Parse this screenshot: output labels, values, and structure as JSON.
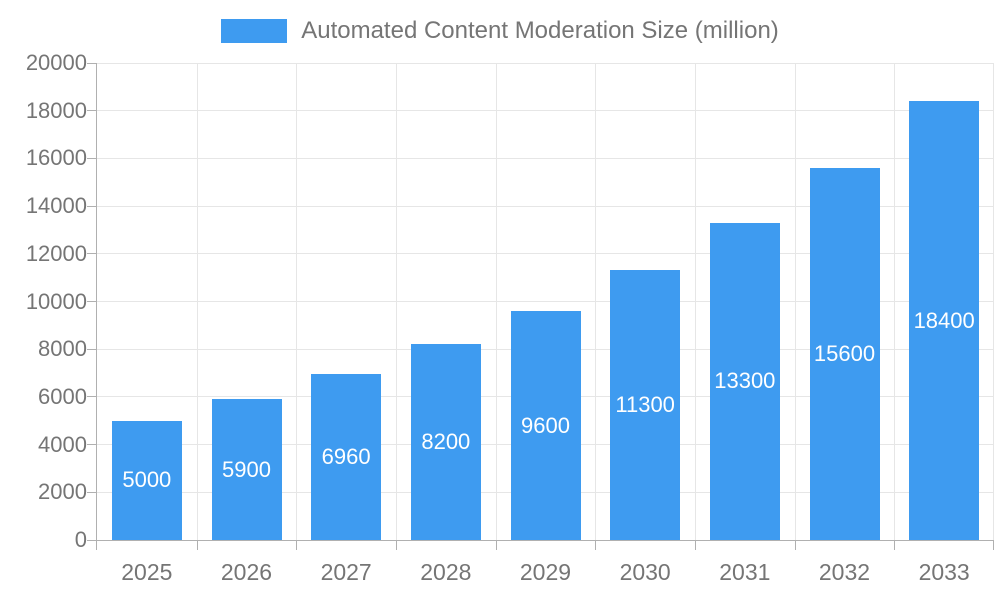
{
  "chart_data": {
    "type": "bar",
    "title": "",
    "legend_label": "Automated Content Moderation Size (million)",
    "legend_position": "top",
    "categories": [
      "2025",
      "2026",
      "2027",
      "2028",
      "2029",
      "2030",
      "2031",
      "2032",
      "2033"
    ],
    "values": [
      5000,
      5900,
      6960,
      8200,
      9600,
      11300,
      13300,
      15600,
      18400
    ],
    "bar_value_labels": [
      "5000",
      "5900",
      "6960",
      "8200",
      "9600",
      "11300",
      "13300",
      "15600",
      "18400"
    ],
    "xlabel": "",
    "ylabel": "",
    "ylim": [
      0,
      20000
    ],
    "yticks": [
      0,
      2000,
      4000,
      6000,
      8000,
      10000,
      12000,
      14000,
      16000,
      18000,
      20000
    ],
    "ytick_labels": [
      "0",
      "2000",
      "4000",
      "6000",
      "8000",
      "10000",
      "12000",
      "14000",
      "16000",
      "18000",
      "20000"
    ],
    "grid": true,
    "colors": {
      "bar": "#3E9BF0",
      "bar_label": "#FFFFFF",
      "axis_text": "#757575",
      "grid_line": "#E6E6E6",
      "axis_line": "#B0B0B0",
      "background": "#FFFFFF"
    }
  }
}
